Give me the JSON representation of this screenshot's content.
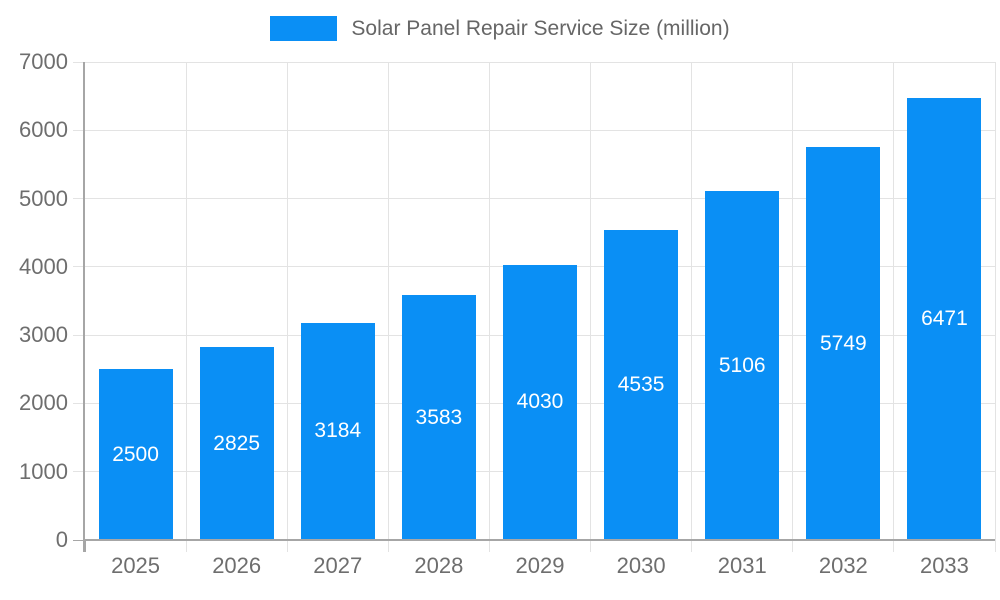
{
  "legend": {
    "label": "Solar Panel Repair Service Size (million)"
  },
  "colors": {
    "bar": "#0a8ff5",
    "grid": "#e3e3e3",
    "axis": "#a6a6a6",
    "tick_text": "#6e6e6e",
    "legend_text": "#666666",
    "value_label": "#ffffff",
    "background": "#ffffff"
  },
  "chart_data": {
    "type": "bar",
    "title": "Solar Panel Repair Service Size (million)",
    "categories": [
      "2025",
      "2026",
      "2027",
      "2028",
      "2029",
      "2030",
      "2031",
      "2032",
      "2033"
    ],
    "values": [
      2500,
      2825,
      3184,
      3583,
      4030,
      4535,
      5106,
      5749,
      6471
    ],
    "xlabel": "",
    "ylabel": "",
    "ylim": [
      0,
      7000
    ],
    "yticks": [
      0,
      1000,
      2000,
      3000,
      4000,
      5000,
      6000,
      7000
    ],
    "grid": true,
    "legend_position": "top-center",
    "value_labels_position": "inside-center"
  }
}
